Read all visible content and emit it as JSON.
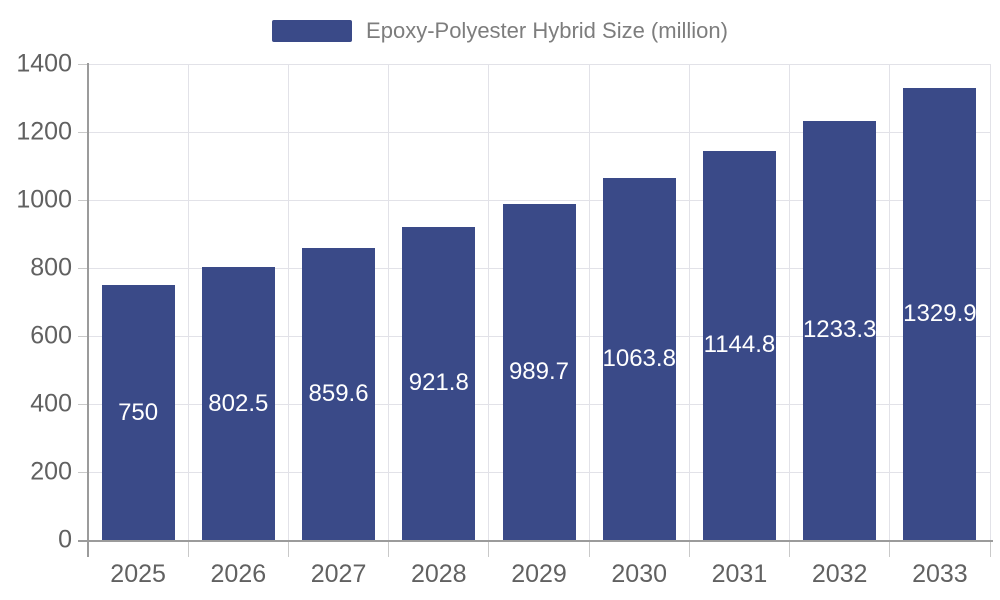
{
  "chart_data": {
    "type": "bar",
    "title": "",
    "categories": [
      "2025",
      "2026",
      "2027",
      "2028",
      "2029",
      "2030",
      "2031",
      "2032",
      "2033"
    ],
    "series": [
      {
        "name": "Epoxy-Polyester Hybrid Size (million)",
        "values": [
          750,
          802.5,
          859.6,
          921.8,
          989.7,
          1063.8,
          1144.8,
          1233.3,
          1329.9
        ]
      }
    ],
    "value_labels": [
      "750",
      "802.5",
      "859.6",
      "921.8",
      "989.7",
      "1063.8",
      "1144.8",
      "1233.3",
      "1329.9"
    ],
    "xlabel": "",
    "ylabel": "",
    "ylim": [
      0,
      1400
    ],
    "ytick_interval": 200,
    "ytick_labels": [
      "0",
      "200",
      "400",
      "600",
      "800",
      "1000",
      "1200",
      "1400"
    ],
    "grid": "horizontal and vertical gridlines on",
    "legend_position": "top-center",
    "bar_label_position": "inside-center",
    "colors": {
      "bar": "#3a4a88",
      "bar_label_text": "#ffffff",
      "axis_label": "#616161",
      "legend_text": "#7d7d7d",
      "grid_line": "#e2e2e8",
      "axis_line": "#9b9b9b",
      "tick_line": "#c9c9c9",
      "background": "#ffffff"
    }
  }
}
